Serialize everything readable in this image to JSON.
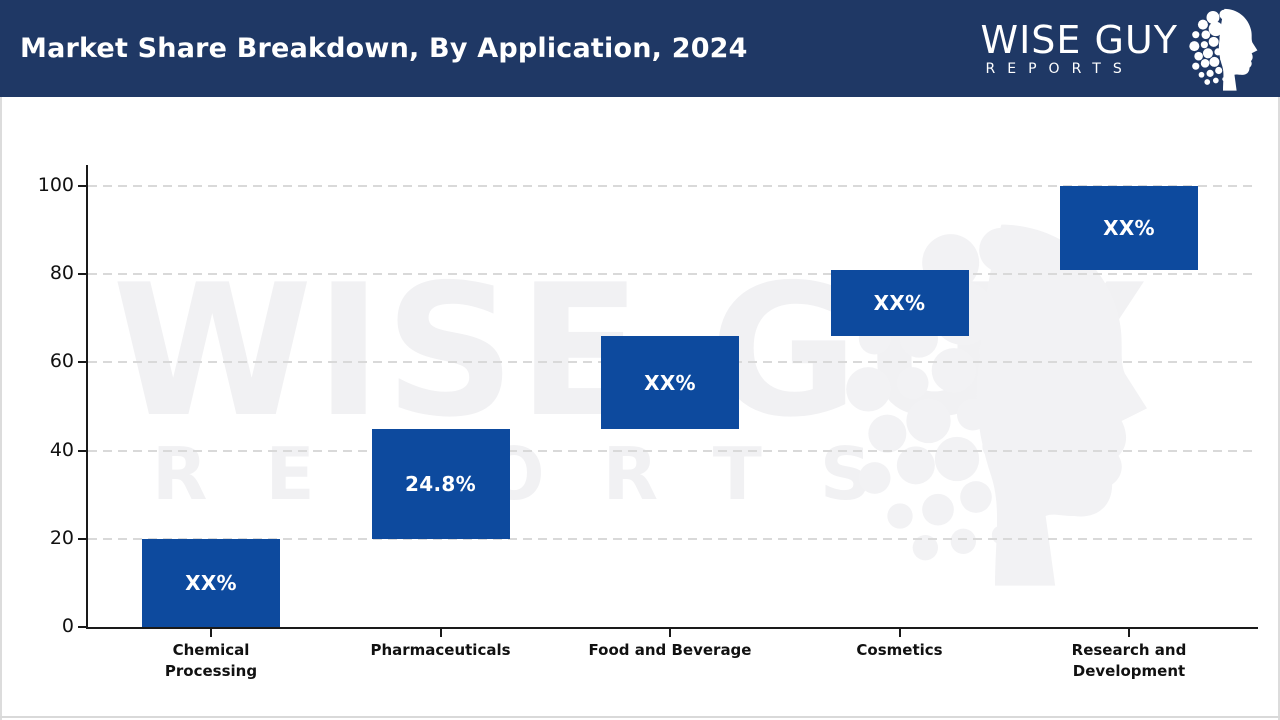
{
  "header": {
    "title": "Market Share Breakdown, By Application, 2024",
    "logo": {
      "line1": "WISE GUY",
      "line2": "REPORTS"
    },
    "bg_color": "#1f3865"
  },
  "watermark": {
    "line1": "WISE GUY",
    "line2": "REPORTS"
  },
  "chart_data": {
    "type": "bar",
    "subtype": "floating-waterfall",
    "title": "Market Share Breakdown, By Application, 2024",
    "categories": [
      "Chemical Processing",
      "Pharmaceuticals",
      "Food and Beverage",
      "Cosmetics",
      "Research and Development"
    ],
    "category_lines": [
      "Chemical\nProcessing",
      "Pharmaceuticals",
      "Food and Beverage",
      "Cosmetics",
      "Research and\nDevelopment"
    ],
    "segments": [
      {
        "category": "Chemical Processing",
        "start": 0,
        "end": 20,
        "label": "XX%"
      },
      {
        "category": "Pharmaceuticals",
        "start": 20,
        "end": 44.8,
        "label": "24.8%"
      },
      {
        "category": "Food and Beverage",
        "start": 44.8,
        "end": 66,
        "label": "XX%"
      },
      {
        "category": "Cosmetics",
        "start": 66,
        "end": 81,
        "label": "XX%"
      },
      {
        "category": "Research and Development",
        "start": 81,
        "end": 100,
        "label": "XX%"
      }
    ],
    "xlabel": "",
    "ylabel": "",
    "yticks": [
      0,
      20,
      40,
      60,
      80,
      100
    ],
    "ylim": [
      0,
      105
    ],
    "grid": "horizontal-dashed",
    "grid_color": "#d9d9d9",
    "bar_color": "#0d4a9e",
    "bar_label_color": "#ffffff",
    "axis_color": "#1a1a1a",
    "legend": "none"
  }
}
